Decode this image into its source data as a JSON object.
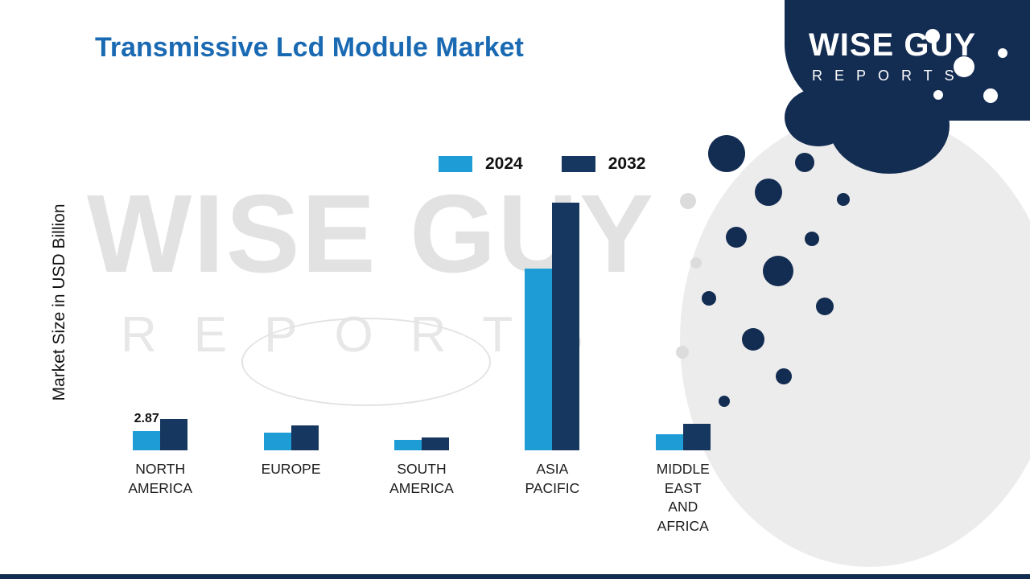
{
  "page": {
    "title": "Transmissive Lcd Module Market"
  },
  "logo": {
    "line1": "WISE GUY",
    "line2": "REPORTS"
  },
  "watermark": {
    "line1": "WISE GUY",
    "line2": "REPORTS"
  },
  "chart_data": {
    "type": "bar",
    "title": "Transmissive Lcd Module Market",
    "xlabel": "",
    "ylabel": "Market Size in USD Billion",
    "categories": [
      "NORTH AMERICA",
      "EUROPE",
      "SOUTH AMERICA",
      "ASIA PACIFIC",
      "MIDDLE EAST AND AFRICA"
    ],
    "category_labels": [
      "NORTH\nAMERICA",
      "EUROPE",
      "SOUTH\nAMERICA",
      "ASIA\nPACIFIC",
      "MIDDLE\nEAST\nAND\nAFRICA"
    ],
    "series": [
      {
        "name": "2024",
        "color": "#1e9cd6",
        "values": [
          2.87,
          2.6,
          1.5,
          27.0,
          2.4
        ]
      },
      {
        "name": "2032",
        "color": "#16375f",
        "values": [
          4.6,
          3.7,
          1.9,
          36.8,
          3.9
        ]
      }
    ],
    "ylim": [
      0,
      40
    ],
    "grid": false,
    "legend_position": "top-center",
    "annotations": [
      {
        "series_index": 0,
        "category_index": 0,
        "text": "2.87"
      }
    ]
  },
  "colors": {
    "title_blue": "#1a6ab3",
    "bar_light_blue": "#1e9cd6",
    "bar_navy": "#16375f",
    "logo_navy": "#132c52",
    "watermark_gray": "#e2e2e2",
    "head_gray": "#ececec"
  }
}
